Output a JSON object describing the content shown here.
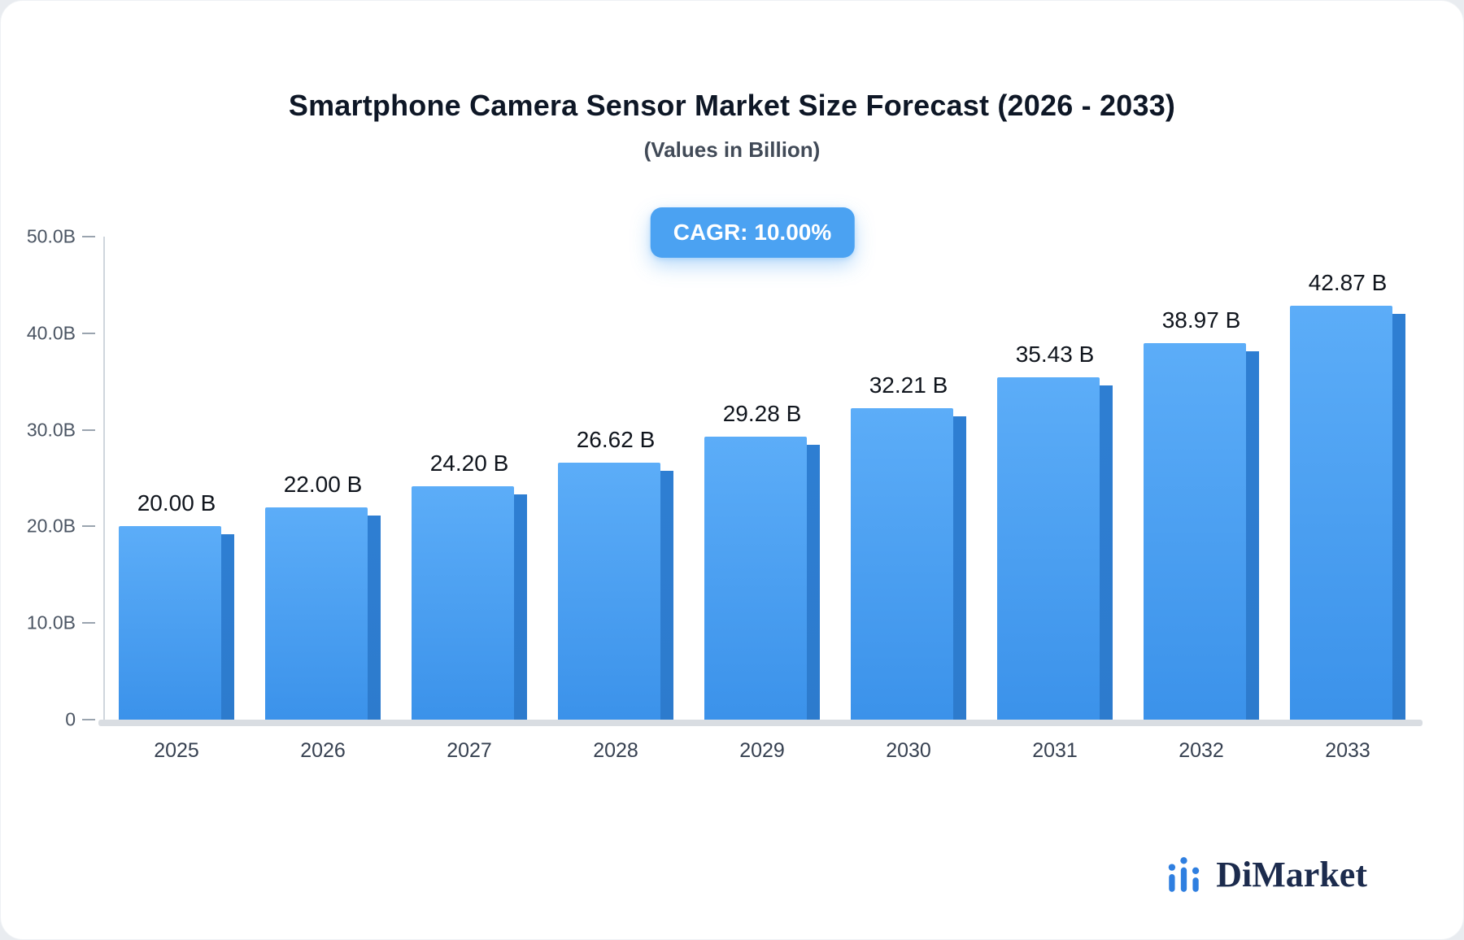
{
  "page": {
    "title": "Smartphone Camera Sensor Market Size Forecast (2026 - 2033)",
    "subtitle": "(Values in Billion)",
    "cagr_badge": "CAGR: 10.00%"
  },
  "chart_data": {
    "type": "bar",
    "title": "Smartphone Camera Sensor Market Size Forecast (2026 - 2033)",
    "subtitle": "(Values in Billion)",
    "annotation": "CAGR: 10.00%",
    "categories": [
      "2025",
      "2026",
      "2027",
      "2028",
      "2029",
      "2030",
      "2031",
      "2032",
      "2033"
    ],
    "values": [
      20.0,
      22.0,
      24.2,
      26.62,
      29.28,
      32.21,
      35.43,
      38.97,
      42.87
    ],
    "value_labels": [
      "20.00 B",
      "22.00 B",
      "24.20 B",
      "26.62 B",
      "29.28 B",
      "32.21 B",
      "35.43 B",
      "38.97 B",
      "42.87 B"
    ],
    "xlabel": "",
    "ylabel": "",
    "ylim": [
      0,
      50
    ],
    "yticks": [
      {
        "label": "50.0B",
        "value": 50
      },
      {
        "label": "40.0B",
        "value": 40
      },
      {
        "label": "30.0B",
        "value": 30
      },
      {
        "label": "20.0B",
        "value": 20
      },
      {
        "label": "10.0B",
        "value": 10
      },
      {
        "label": "0",
        "value": 0
      }
    ],
    "grid": false,
    "legend": "none",
    "colors": {
      "bar_top": "#5cadf8",
      "bar_bottom": "#3b92ea",
      "bar_side": "#2e7ed2",
      "badge_bg": "#4ba2f2",
      "axis": "#cfd6dd",
      "baseline": "#d9dde2"
    }
  },
  "logo": {
    "text": "DiMarket",
    "icon": "bar-chart-logo-icon",
    "text_color": "#1c2b4d",
    "icon_color": "#2f7fe0"
  }
}
